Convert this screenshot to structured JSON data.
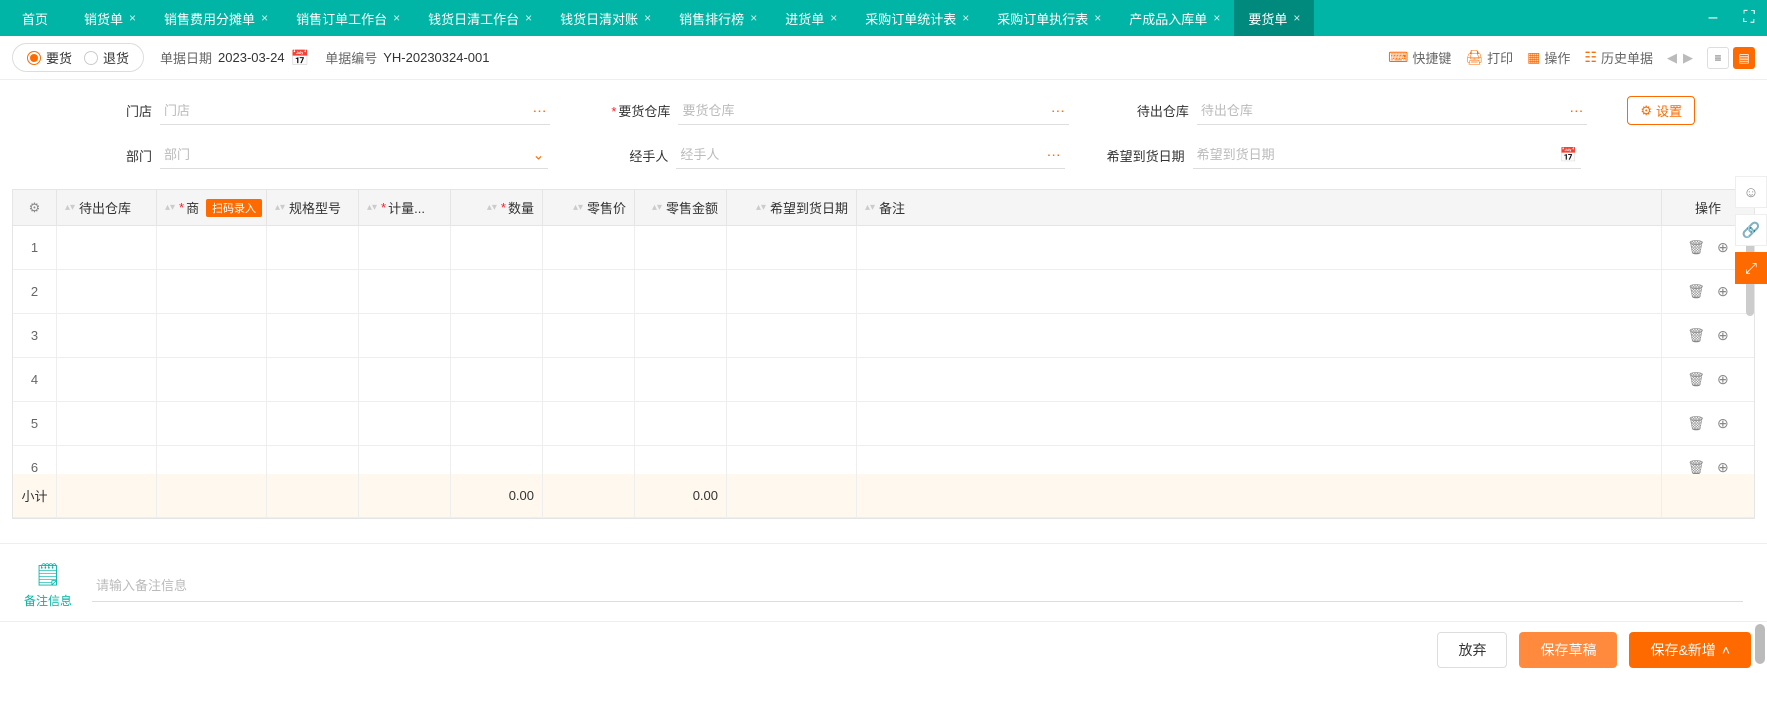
{
  "colors": {
    "brand": "#00b5a5",
    "brandDark": "#008a7d",
    "accent": "#ff6a00",
    "accentLight": "#ff8a3d",
    "border": "#e5e5e5",
    "subtotalBg": "#fff8ef"
  },
  "tabs": {
    "home": "首页",
    "items": [
      {
        "label": "销货单"
      },
      {
        "label": "销售费用分摊单"
      },
      {
        "label": "销售订单工作台"
      },
      {
        "label": "钱货日清工作台"
      },
      {
        "label": "钱货日清对账"
      },
      {
        "label": "销售排行榜"
      },
      {
        "label": "进货单"
      },
      {
        "label": "采购订单统计表"
      },
      {
        "label": "采购订单执行表"
      },
      {
        "label": "产成品入库单"
      },
      {
        "label": "要货单",
        "active": true
      }
    ]
  },
  "toolbar": {
    "radio": {
      "option1": "要货",
      "option2": "退货",
      "selected": "要货"
    },
    "dateLabel": "单据日期",
    "dateValue": "2023-03-24",
    "docNumLabel": "单据编号",
    "docNumValue": "YH-20230324-001",
    "shortcut": "快捷键",
    "print": "打印",
    "operate": "操作",
    "history": "历史单据"
  },
  "form": {
    "row1": {
      "store": {
        "label": "门店",
        "placeholder": "门店"
      },
      "reqWh": {
        "label": "要货仓库",
        "placeholder": "要货仓库",
        "required": true
      },
      "outWh": {
        "label": "待出仓库",
        "placeholder": "待出仓库"
      },
      "settings": "设置"
    },
    "row2": {
      "dept": {
        "label": "部门",
        "placeholder": "部门"
      },
      "handler": {
        "label": "经手人",
        "placeholder": "经手人"
      },
      "expectDate": {
        "label": "希望到货日期",
        "placeholder": "希望到货日期"
      }
    }
  },
  "grid": {
    "headers": {
      "outWh": "待出仓库",
      "product": "商",
      "scanBadge": "扫码录入",
      "spec": "规格型号",
      "unit": "计量...",
      "qty": "数量",
      "price": "零售价",
      "amount": "零售金额",
      "expectDate": "希望到货日期",
      "note": "备注",
      "ops": "操作"
    },
    "rows": [
      1,
      2,
      3,
      4,
      5,
      6
    ],
    "subtotal": {
      "label": "小计",
      "qty": "0.00",
      "amount": "0.00"
    }
  },
  "remarks": {
    "label": "备注信息",
    "placeholder": "请输入备注信息"
  },
  "footer": {
    "discard": "放弃",
    "draft": "保存草稿",
    "save": "保存&新增"
  }
}
